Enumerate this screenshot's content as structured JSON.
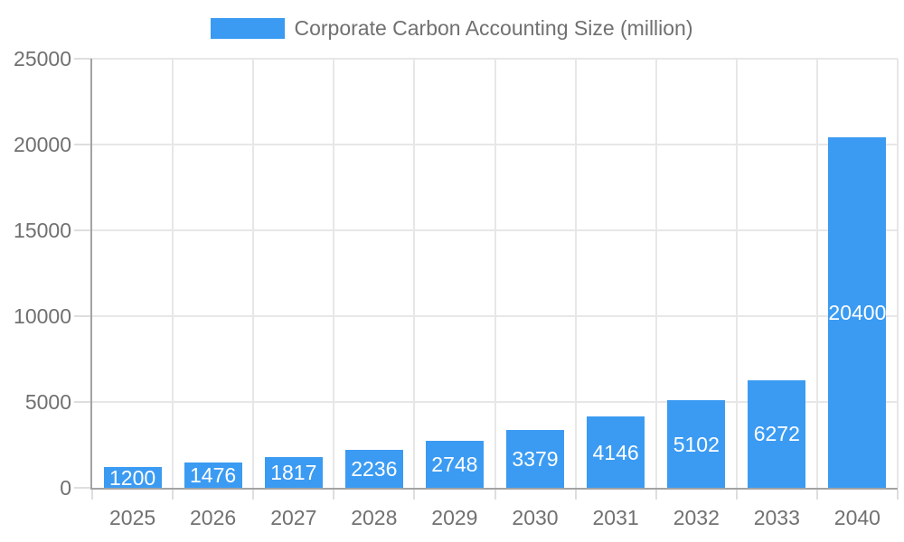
{
  "legend": {
    "series_label": "Corporate Carbon Accounting Size (million)"
  },
  "colors": {
    "bar": "#3b9bf2",
    "value_label": "#ffffff",
    "text_gray": "#707070",
    "axis_line": "#a3a3a3",
    "gridline": "#e7e7e7",
    "tick": "#dedede",
    "background": "#ffffff"
  },
  "chart_data": {
    "type": "bar",
    "title": "Corporate Carbon Accounting Size (million)",
    "categories": [
      "2025",
      "2026",
      "2027",
      "2028",
      "2029",
      "2030",
      "2031",
      "2032",
      "2033",
      "2040"
    ],
    "values": [
      1200,
      1476,
      1817,
      2236,
      2748,
      3379,
      4146,
      5102,
      6272,
      20400
    ],
    "xlabel": "",
    "ylabel": "",
    "ylim": [
      0,
      25000
    ],
    "yticks": [
      0,
      5000,
      10000,
      15000,
      20000,
      25000
    ],
    "ytick_labels": [
      "0",
      "5000",
      "10000",
      "15000",
      "20000",
      "25000"
    ],
    "grid": true,
    "legend_position": "top",
    "value_label_position": "inside-center",
    "bar_color": "#3b9bf2"
  }
}
